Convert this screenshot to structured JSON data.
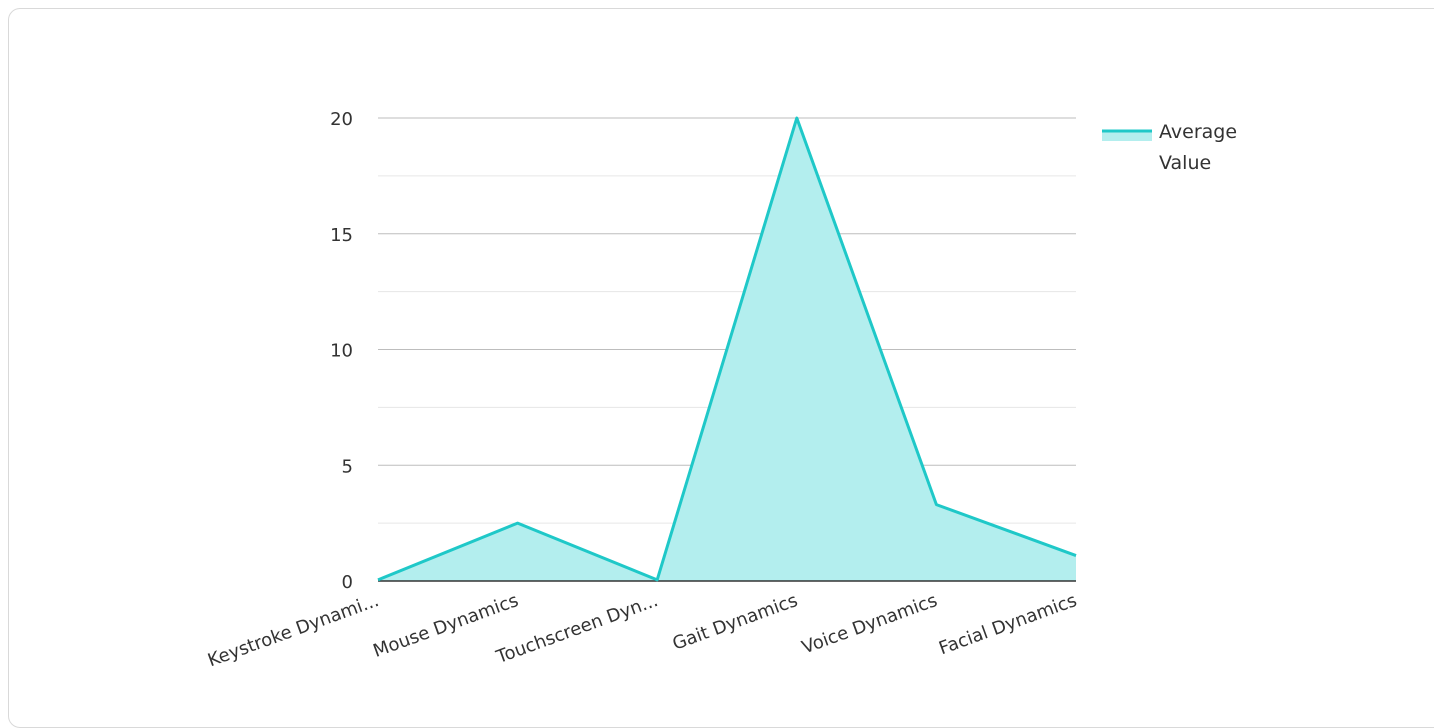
{
  "chart_data": {
    "type": "area",
    "categories": [
      "Keystroke Dynami...",
      "Mouse Dynamics",
      "Touchscreen Dyn...",
      "Gait Dynamics",
      "Voice Dynamics",
      "Facial Dynamics"
    ],
    "series": [
      {
        "name": "Average Value",
        "values": [
          0.05,
          2.5,
          0.05,
          20,
          3.3,
          1.1
        ]
      }
    ],
    "ylim": [
      0,
      20
    ],
    "y_ticks": [
      0,
      5,
      10,
      15,
      20
    ],
    "y_tick_labels": [
      "0",
      "5",
      "10",
      "15",
      "20"
    ],
    "legend": {
      "position": "right",
      "label_lines": [
        "Average",
        "Value"
      ]
    },
    "colors": {
      "line": "#1fc8c8",
      "fill": "#b3eeee",
      "major_grid": "#bdbdbd",
      "minor_grid": "#e6e6e6",
      "baseline": "#333333"
    },
    "grid": true,
    "title": "",
    "xlabel": "",
    "ylabel": ""
  }
}
